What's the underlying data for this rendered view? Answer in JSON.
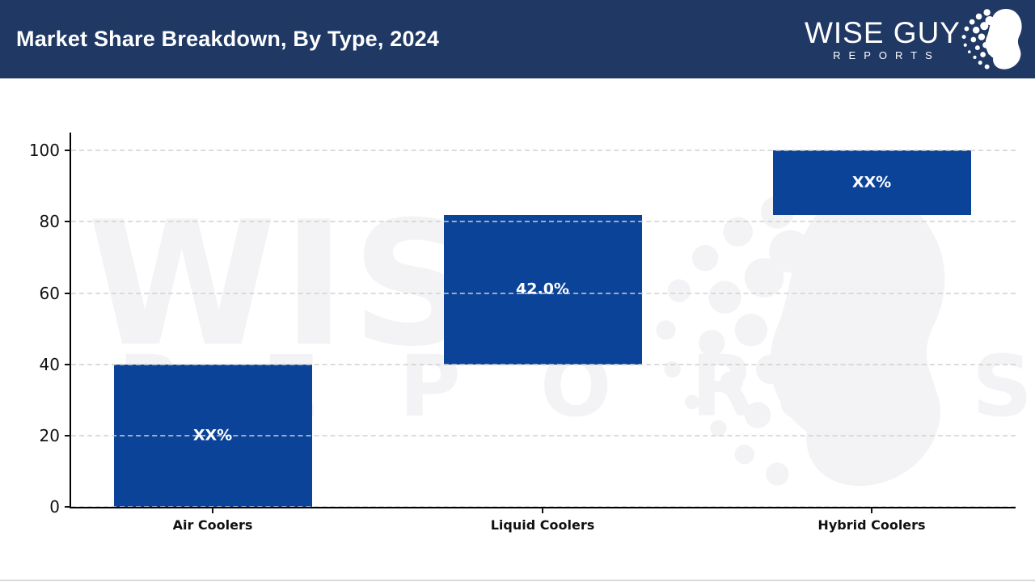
{
  "header": {
    "title": "Market Share Breakdown, By Type, 2024",
    "brand": {
      "line1": "WISE GUY",
      "line2": "REPORTS"
    }
  },
  "watermark": {
    "line1": "WISE",
    "line2": "REPORTS"
  },
  "colors": {
    "header_bg": "#1f3864",
    "bar": "#0a4398",
    "grid": "#d9d9d9",
    "axis": "#111111",
    "bar_label_text": "#ffffff",
    "watermark": "#f3f3f5"
  },
  "chart_data": {
    "type": "bar",
    "variant": "stacked-progression",
    "title": "Market Share Breakdown, By Type, 2024",
    "categories": [
      "Air Coolers",
      "Liquid Coolers",
      "Hybrid Coolers"
    ],
    "bars": [
      {
        "category": "Air Coolers",
        "start": 0,
        "end": 40,
        "value_label": "XX%"
      },
      {
        "category": "Liquid Coolers",
        "start": 40,
        "end": 82,
        "value_label": "42.0%"
      },
      {
        "category": "Hybrid Coolers",
        "start": 82,
        "end": 100,
        "value_label": "XX%"
      }
    ],
    "xlabel": "",
    "ylabel": "",
    "ylim": [
      0,
      100
    ],
    "yticks": [
      "0",
      "20",
      "40",
      "60",
      "80",
      "100"
    ],
    "grid": "horizontal-dashed",
    "legend": "none"
  }
}
